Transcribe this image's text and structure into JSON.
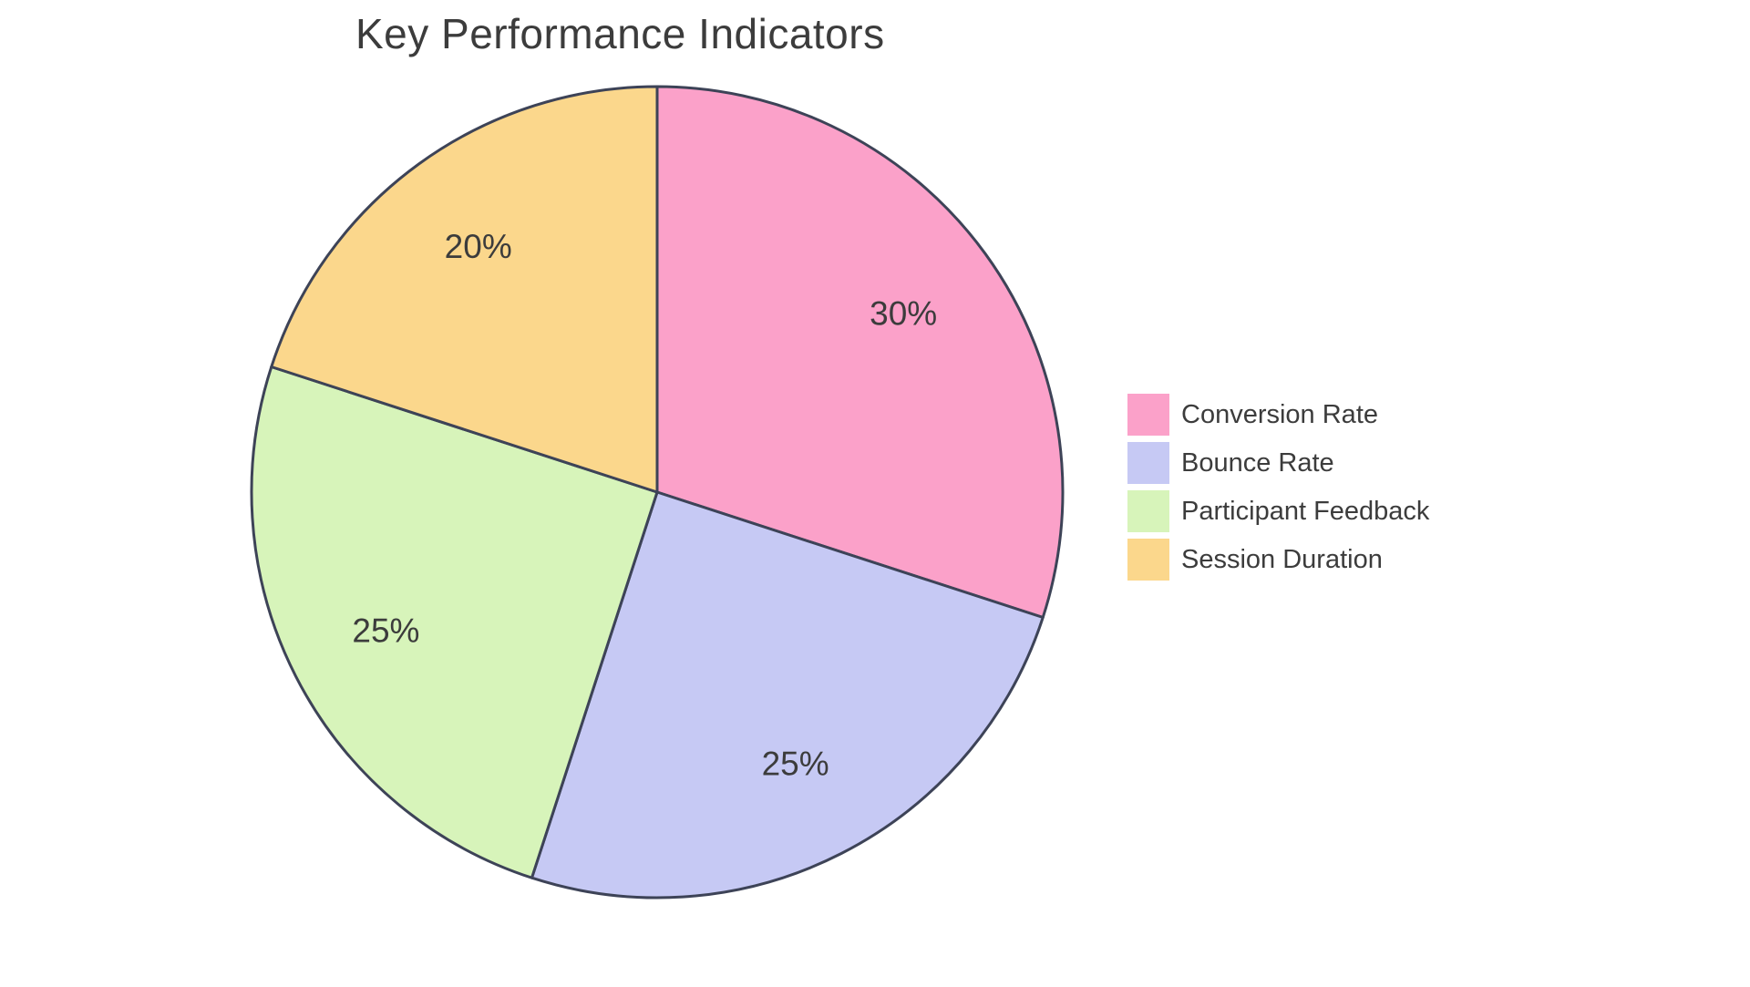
{
  "title": "Key Performance Indicators",
  "colors": {
    "background": "#ffffff",
    "outline": "#3d4357",
    "text": "#3c3c3c"
  },
  "chart_data": {
    "type": "pie",
    "title": "Key Performance Indicators",
    "direction": "clockwise",
    "start_angle_deg": 0,
    "legend_position": "right",
    "slices": [
      {
        "label": "Conversion Rate",
        "value": 30,
        "percent_label": "30%",
        "color": "#FBA1C9"
      },
      {
        "label": "Bounce Rate",
        "value": 25,
        "percent_label": "25%",
        "color": "#C6C9F4"
      },
      {
        "label": "Participant Feedback",
        "value": 25,
        "percent_label": "25%",
        "color": "#D7F4BA"
      },
      {
        "label": "Session Duration",
        "value": 20,
        "percent_label": "20%",
        "color": "#FBD78C"
      }
    ]
  }
}
